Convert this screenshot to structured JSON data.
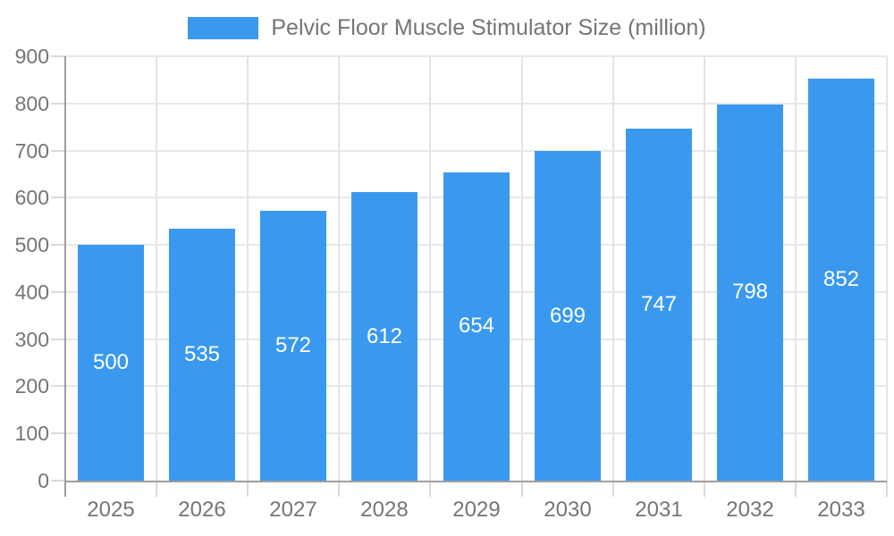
{
  "legend": {
    "label": "Pelvic Floor Muscle Stimulator Size (million)"
  },
  "colors": {
    "bar": "#3A99EF",
    "axis_line": "#9E9E9E",
    "gridline_h": "#E8E8E8",
    "gridline_v": "#E4E4E4",
    "tick": "#DADADA",
    "axis_label_text": "#757575",
    "legend_text": "#757575",
    "bar_label_text": "#FFFFFF",
    "background": "#FFFFFF"
  },
  "chart_data": {
    "type": "bar",
    "title": "Pelvic Floor Muscle Stimulator Size (million)",
    "series_name": "Pelvic Floor Muscle Stimulator Size (million)",
    "categories": [
      "2025",
      "2026",
      "2027",
      "2028",
      "2029",
      "2030",
      "2031",
      "2032",
      "2033"
    ],
    "values": [
      500,
      535,
      572,
      612,
      654,
      699,
      747,
      798,
      852
    ],
    "yticks": [
      0,
      100,
      200,
      300,
      400,
      500,
      600,
      700,
      800,
      900
    ],
    "xlabel": "",
    "ylabel": "",
    "ylim": [
      0,
      900
    ],
    "ytick_step": 100,
    "grid": true,
    "legend_position": "top",
    "bar_labels_visible": true,
    "bar_label_position": "center"
  }
}
